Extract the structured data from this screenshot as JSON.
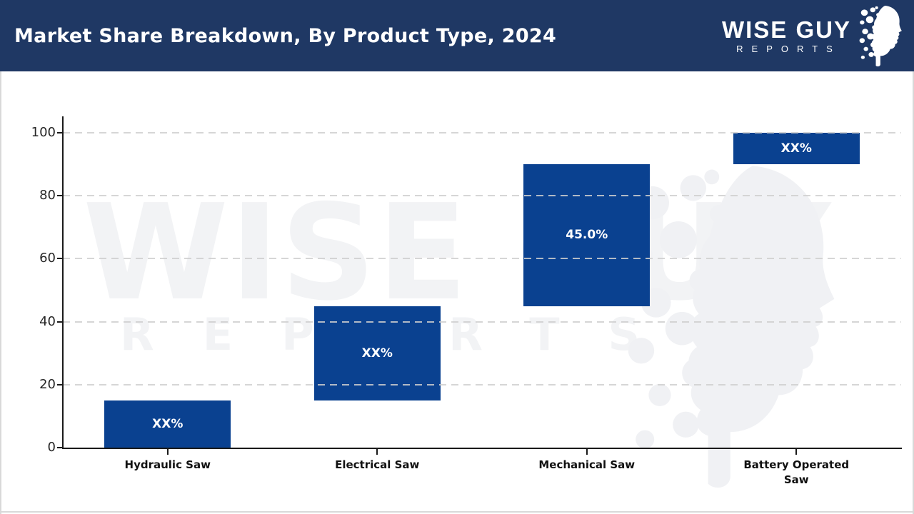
{
  "header": {
    "bg_color": "#1f3864",
    "title": "Market Share Breakdown, By Product Type, 2024",
    "logo": {
      "line1": "WISE GUY",
      "line2": "REPORTS"
    }
  },
  "watermark": {
    "line1": "WISE GUY",
    "line2": "REPORTS"
  },
  "chart_data": {
    "type": "bar",
    "subtype": "floating-waterfall",
    "title": "Market Share Breakdown, By Product Type, 2024",
    "categories": [
      "Hydraulic Saw",
      "Electrical Saw",
      "Mechanical Saw",
      "Battery Operated Saw"
    ],
    "bars": [
      {
        "category": "Hydraulic Saw",
        "start": 0,
        "end": 15,
        "label": "XX%"
      },
      {
        "category": "Electrical Saw",
        "start": 15,
        "end": 45,
        "label": "XX%"
      },
      {
        "category": "Mechanical Saw",
        "start": 45,
        "end": 90,
        "label": "45.0%"
      },
      {
        "category": "Battery Operated Saw",
        "start": 90,
        "end": 100,
        "label": "XX%"
      }
    ],
    "yticks": [
      0,
      20,
      40,
      60,
      80,
      100
    ],
    "ylim": [
      0,
      105
    ],
    "xlabel": "",
    "ylabel": "",
    "grid": "dashed-horizontal",
    "grid_over_bars": true,
    "legend": "none",
    "bar_color": "#0a4190",
    "bar_label_color": "#ffffff"
  }
}
